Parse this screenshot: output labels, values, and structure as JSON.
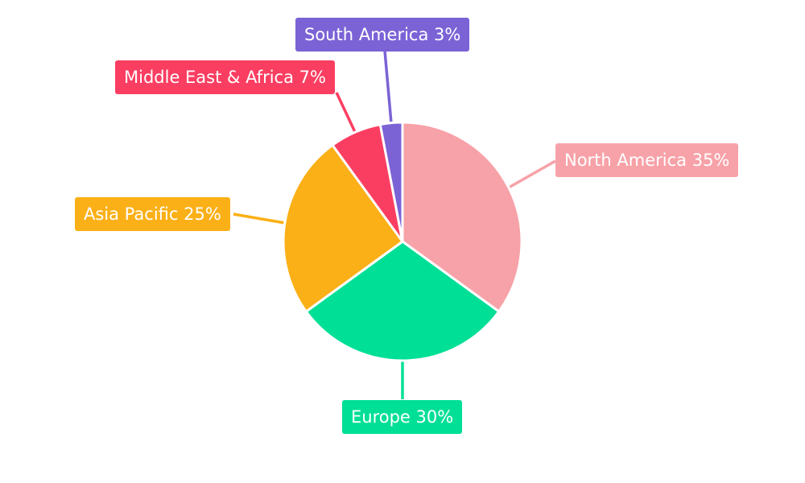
{
  "chart_data": {
    "type": "pie",
    "title": "",
    "total": 100,
    "start_angle_deg": 0,
    "direction": "clockwise",
    "background_color": "#FFFFFF",
    "label_text_color": "#FFFFFF",
    "slice_border_color": "#FFFFFF",
    "segments": [
      {
        "name": "North America",
        "value": 35,
        "label": "North America 35%",
        "color": "#F7A2A8"
      },
      {
        "name": "Europe",
        "value": 30,
        "label": "Europe 30%",
        "color": "#00DF96"
      },
      {
        "name": "Asia Pacific",
        "value": 25,
        "label": "Asia Pacific 25%",
        "color": "#FBB017"
      },
      {
        "name": "Middle East & Africa",
        "value": 7,
        "label": "Middle East & Africa 7%",
        "color": "#FA3E61"
      },
      {
        "name": "South America",
        "value": 3,
        "label": "South America 3%",
        "color": "#7B63D6"
      }
    ]
  }
}
